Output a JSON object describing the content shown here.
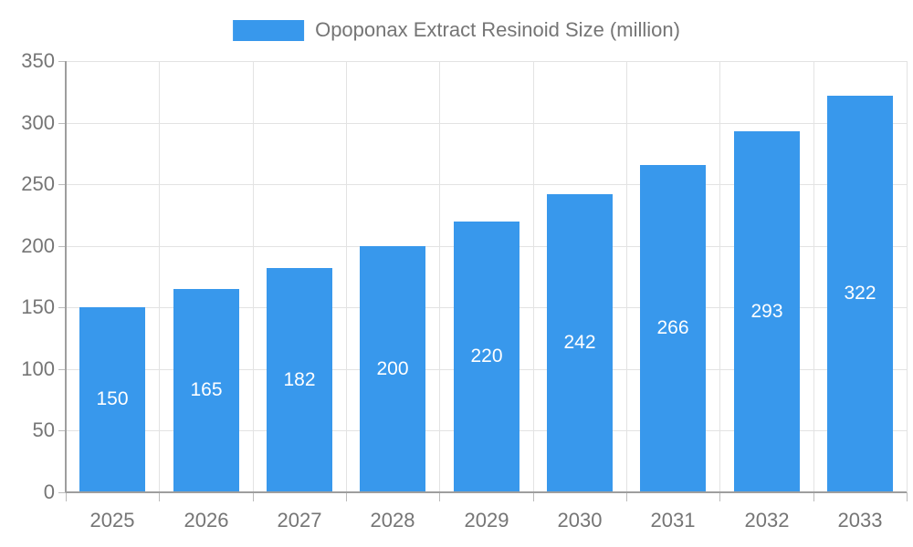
{
  "chart_data": {
    "type": "bar",
    "title": "Opoponax Extract Resinoid Size (million)",
    "categories": [
      "2025",
      "2026",
      "2027",
      "2028",
      "2029",
      "2030",
      "2031",
      "2032",
      "2033"
    ],
    "values": [
      150,
      165,
      182,
      200,
      220,
      242,
      266,
      293,
      322
    ],
    "xlabel": "",
    "ylabel": "",
    "ylim": [
      0,
      350
    ],
    "yticks": [
      0,
      50,
      100,
      150,
      200,
      250,
      300,
      350
    ],
    "grid": true,
    "legend_position": "top-center",
    "value_label_position": "inside-center",
    "colors": {
      "bar": "#3898EC",
      "bar_label": "#FFFFFF",
      "axis": "#9E9E9E",
      "tick": "#BBBBBB",
      "grid": "#E3E3E3",
      "text": "#757575",
      "background": "#FFFFFF"
    }
  }
}
